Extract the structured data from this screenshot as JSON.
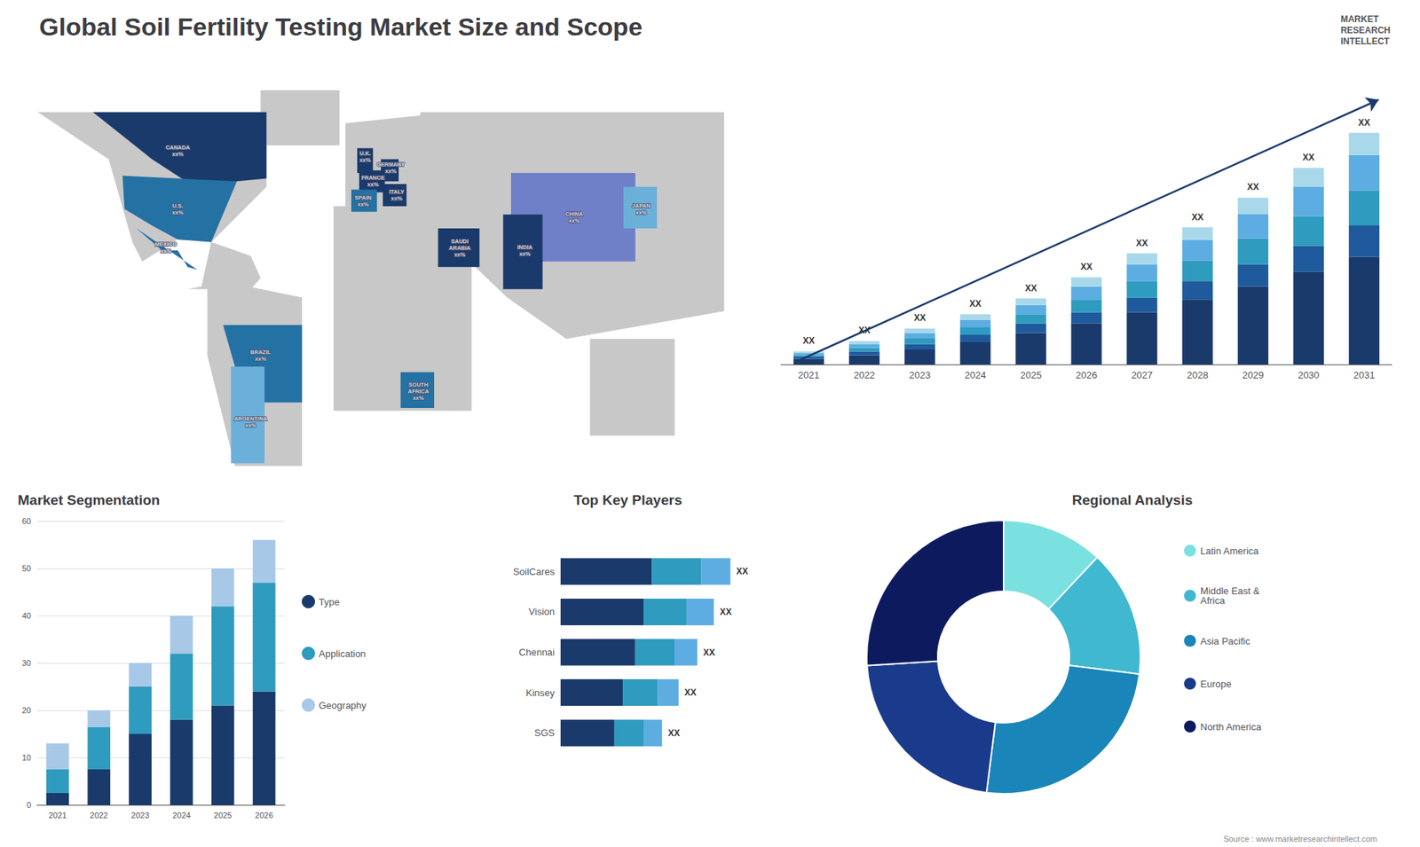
{
  "title": "Global Soil Fertility Testing Market Size and Scope",
  "annotations": [
    "Source : www.marketresearchintellect.com",
    "MARKET\nRESEARCH\nINTELLECT"
  ],
  "chart_data": [
    {
      "type": "map",
      "xlim": [
        -180,
        180
      ],
      "ylim": [
        -62,
        88
      ],
      "tick_labels": false,
      "land": {
        "color": "#c8c8c8",
        "polygons": [
          [
            [
              -168,
              72
            ],
            [
              -52,
              72
            ],
            [
              -52,
              45
            ],
            [
              -80,
              25
            ],
            [
              -85,
              9
            ],
            [
              -92,
              8
            ],
            [
              -60,
              8
            ],
            [
              -55,
              12
            ],
            [
              -60,
              20
            ],
            [
              -80,
              25
            ],
            [
              -97,
              26
            ],
            [
              -115,
              18
            ],
            [
              -120,
              25
            ],
            [
              -132,
              55
            ],
            [
              -168,
              72
            ]
          ],
          [
            [
              -82,
              12
            ],
            [
              -34,
              5
            ],
            [
              -34,
              -56
            ],
            [
              -68,
              -56
            ],
            [
              -82,
              -16
            ],
            [
              -82,
              12
            ]
          ],
          [
            [
              -12,
              35
            ],
            [
              42,
              35
            ],
            [
              42,
              72
            ],
            [
              -12,
              68
            ],
            [
              -12,
              35
            ]
          ],
          [
            [
              -18,
              38
            ],
            [
              52,
              38
            ],
            [
              52,
              -36
            ],
            [
              -18,
              -36
            ],
            [
              -18,
              38
            ]
          ],
          [
            [
              26,
              72
            ],
            [
              180,
              72
            ],
            [
              180,
              0
            ],
            [
              100,
              -10
            ],
            [
              70,
              5
            ],
            [
              26,
              35
            ],
            [
              26,
              72
            ]
          ],
          [
            [
              112,
              -10
            ],
            [
              155,
              -10
            ],
            [
              155,
              -45
            ],
            [
              112,
              -45
            ],
            [
              112,
              -10
            ]
          ],
          [
            [
              -55,
              80
            ],
            [
              -15,
              80
            ],
            [
              -15,
              60
            ],
            [
              -55,
              60
            ],
            [
              -55,
              80
            ]
          ]
        ]
      },
      "regions": [
        {
          "color": "#1a3a6b",
          "polygon": [
            [
              -140,
              72
            ],
            [
              -52,
              72
            ],
            [
              -52,
              48
            ],
            [
              -67,
              47
            ],
            [
              -80,
              45
            ],
            [
              -95,
              48
            ],
            [
              -110,
              55
            ],
            [
              -140,
              72
            ]
          ]
        },
        {
          "color": "#2471a3",
          "polygon": [
            [
              -125,
              49
            ],
            [
              -67,
              47
            ],
            [
              -80,
              25
            ],
            [
              -97,
              26
            ],
            [
              -110,
              31
            ],
            [
              -124,
              37
            ],
            [
              -125,
              49
            ]
          ]
        },
        {
          "color": "#2471a3",
          "polygon": [
            [
              -118,
              30
            ],
            [
              -87,
              15
            ],
            [
              -92,
              16
            ],
            [
              -97,
              22
            ],
            [
              -105,
              22
            ],
            [
              -118,
              30
            ]
          ]
        },
        {
          "color": "#2471a3",
          "polygon": [
            [
              -74,
              -5
            ],
            [
              -34,
              -5
            ],
            [
              -34,
              -33
            ],
            [
              -55,
              -33
            ],
            [
              -68,
              -20
            ],
            [
              -74,
              -5
            ]
          ]
        },
        {
          "color": "#6ab0d8",
          "polygon": [
            [
              -70,
              -20
            ],
            [
              -53,
              -20
            ],
            [
              -53,
              -55
            ],
            [
              -70,
              -55
            ],
            [
              -70,
              -20
            ]
          ]
        },
        {
          "color": "#1a3a6b",
          "polygon": [
            [
              -6,
              50
            ],
            [
              2,
              50
            ],
            [
              2,
              59
            ],
            [
              -6,
              59
            ],
            [
              -6,
              50
            ]
          ]
        },
        {
          "color": "#1a3a6b",
          "polygon": [
            [
              -5,
              43
            ],
            [
              8,
              43
            ],
            [
              8,
              51
            ],
            [
              -5,
              51
            ],
            [
              -5,
              43
            ]
          ]
        },
        {
          "color": "#2471a3",
          "polygon": [
            [
              -9,
              36
            ],
            [
              4,
              36
            ],
            [
              4,
              44
            ],
            [
              -9,
              44
            ],
            [
              -9,
              36
            ]
          ]
        },
        {
          "color": "#1a3a6b",
          "polygon": [
            [
              6,
              47
            ],
            [
              15,
              47
            ],
            [
              15,
              55
            ],
            [
              6,
              55
            ],
            [
              6,
              47
            ]
          ]
        },
        {
          "color": "#1a3a6b",
          "polygon": [
            [
              7,
              38
            ],
            [
              19,
              38
            ],
            [
              19,
              46
            ],
            [
              7,
              46
            ],
            [
              7,
              38
            ]
          ]
        },
        {
          "color": "#1a3a6b",
          "polygon": [
            [
              35,
              16
            ],
            [
              56,
              16
            ],
            [
              56,
              30
            ],
            [
              35,
              30
            ],
            [
              35,
              16
            ]
          ]
        },
        {
          "color": "#2471a3",
          "polygon": [
            [
              16,
              -22
            ],
            [
              33,
              -22
            ],
            [
              33,
              -35
            ],
            [
              16,
              -35
            ],
            [
              16,
              -22
            ]
          ]
        },
        {
          "color": "#7080c8",
          "polygon": [
            [
              72,
              18
            ],
            [
              135,
              18
            ],
            [
              135,
              50
            ],
            [
              72,
              50
            ],
            [
              72,
              18
            ]
          ]
        },
        {
          "color": "#1a3a6b",
          "polygon": [
            [
              68,
              8
            ],
            [
              88,
              8
            ],
            [
              88,
              35
            ],
            [
              68,
              35
            ],
            [
              68,
              8
            ]
          ]
        },
        {
          "color": "#6ab0d8",
          "polygon": [
            [
              129,
              30
            ],
            [
              146,
              30
            ],
            [
              146,
              45
            ],
            [
              129,
              45
            ],
            [
              129,
              30
            ]
          ]
        }
      ],
      "annotations": [
        {
          "x": -97,
          "y": 58,
          "text": "CANADA\nxx%"
        },
        {
          "x": -97,
          "y": 37,
          "text": "U.S.\nxx%"
        },
        {
          "x": -103,
          "y": 23,
          "text": "MEXICO\nxx%"
        },
        {
          "x": -55,
          "y": -16,
          "text": "BRAZIL\nxx%"
        },
        {
          "x": -60,
          "y": -40,
          "text": "ARGENTINA\nxx%"
        },
        {
          "x": -2,
          "y": 56,
          "text": "U.K.\nxx%"
        },
        {
          "x": 2,
          "y": 47,
          "text": "FRANCE\nxx%"
        },
        {
          "x": -3,
          "y": 40,
          "text": "SPAIN\nxx%"
        },
        {
          "x": 11,
          "y": 52,
          "text": "GERMANY\nxx%"
        },
        {
          "x": 14,
          "y": 42,
          "text": "ITALY\nxx%"
        },
        {
          "x": 46,
          "y": 23,
          "text": "SAUDI\nARABIA\nxx%"
        },
        {
          "x": 25,
          "y": -29,
          "text": "SOUTH\nAFRICA\nxx%"
        },
        {
          "x": 104,
          "y": 34,
          "text": "CHINA\nxx%"
        },
        {
          "x": 79,
          "y": 22,
          "text": "INDIA\nxx%"
        },
        {
          "x": 138,
          "y": 37,
          "text": "JAPAN\nxx%"
        }
      ]
    },
    {
      "type": "bar",
      "stacked": true,
      "categories": [
        "2021",
        "2022",
        "2023",
        "2024",
        "2025",
        "2026",
        "2027",
        "2028",
        "2029",
        "2030",
        "2031"
      ],
      "series": [
        {
          "color": "#1a3a6b",
          "values": [
            1.5,
            2.5,
            4.0,
            6.0,
            8.5,
            11.0,
            14.0,
            17.5,
            21.0,
            25.0,
            29.0
          ]
        },
        {
          "color": "#1e5a9c",
          "values": [
            0.5,
            1.0,
            1.5,
            2.0,
            2.5,
            3.0,
            4.0,
            5.0,
            6.0,
            7.0,
            8.5
          ]
        },
        {
          "color": "#2e9bbf",
          "values": [
            0.5,
            1.0,
            1.5,
            2.0,
            2.5,
            3.5,
            4.5,
            5.5,
            7.0,
            8.0,
            9.5
          ]
        },
        {
          "color": "#5dade2",
          "values": [
            0.5,
            1.0,
            1.5,
            2.0,
            2.5,
            3.5,
            4.5,
            5.5,
            6.5,
            8.0,
            9.5
          ]
        },
        {
          "color": "#a8d8ea",
          "values": [
            0.5,
            0.8,
            1.2,
            1.5,
            1.8,
            2.5,
            3.0,
            3.5,
            4.5,
            5.0,
            6.0
          ],
          "value_labels": [
            "XX",
            "XX",
            "XX",
            "XX",
            "XX",
            "XX",
            "XX",
            "XX",
            "XX",
            "XX",
            "XX"
          ]
        }
      ],
      "ylim": [
        0,
        80
      ],
      "tick_labels": "x",
      "grid": false
    },
    {
      "type": "bar",
      "title": "Market Segmentation",
      "stacked": true,
      "categories": [
        "2021",
        "2022",
        "2023",
        "2024",
        "2025",
        "2026"
      ],
      "series": [
        {
          "name": "Type",
          "color": "#1a3a6b",
          "values": [
            2.5,
            7.5,
            15.0,
            18.0,
            21.0,
            24.0
          ]
        },
        {
          "name": "Application",
          "color": "#2e9bbf",
          "values": [
            5.0,
            9.0,
            10.0,
            14.0,
            21.0,
            23.0
          ]
        },
        {
          "name": "Geography",
          "color": "#a8c8e8",
          "values": [
            5.5,
            3.5,
            5.0,
            8.0,
            8.0,
            9.0
          ]
        }
      ],
      "ylim": [
        0,
        60
      ],
      "yticks": [
        0,
        10,
        20,
        30,
        40,
        50,
        60
      ],
      "grid": true,
      "legend": "right"
    },
    {
      "type": "bar",
      "title": "Top Key Players",
      "orientation": "horizontal",
      "stacked": true,
      "categories": [
        "SoilCares",
        "Vision",
        "Chennai",
        "Kinsey",
        "SGS"
      ],
      "series": [
        {
          "color": "#1a3a6b",
          "values": [
            0.44,
            0.4,
            0.36,
            0.3,
            0.26
          ]
        },
        {
          "color": "#2e9bbf",
          "values": [
            0.24,
            0.21,
            0.19,
            0.17,
            0.14
          ]
        },
        {
          "color": "#5dade2",
          "values": [
            0.14,
            0.13,
            0.11,
            0.1,
            0.09
          ],
          "value_labels": [
            "XX",
            "XX",
            "XX",
            "XX",
            "XX"
          ]
        }
      ],
      "xlim": [
        0,
        1
      ],
      "tick_labels": "y",
      "grid": false
    },
    {
      "type": "pie",
      "title": "Regional Analysis",
      "categories": [
        "Latin America",
        "Middle East &\nAfrica",
        "Asia Pacific",
        "Europe",
        "North America"
      ],
      "values": [
        12,
        15,
        25,
        22,
        26
      ],
      "colors": [
        "#7ae0e0",
        "#40b8d0",
        "#1a85b8",
        "#1a3a8c",
        "#0d1b5e"
      ],
      "legend": "right"
    }
  ]
}
